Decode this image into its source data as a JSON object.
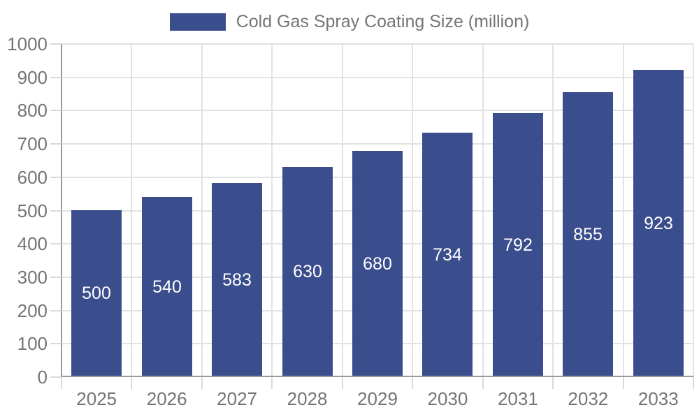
{
  "chart_data": {
    "type": "bar",
    "categories": [
      "2025",
      "2026",
      "2027",
      "2028",
      "2029",
      "2030",
      "2031",
      "2032",
      "2033"
    ],
    "series": [
      {
        "name": "Cold Gas Spray Coating Size (million)",
        "values": [
          500,
          540,
          583,
          630,
          680,
          734,
          792,
          855,
          923
        ]
      }
    ],
    "value_labels": [
      "500",
      "540",
      "583",
      "630",
      "680",
      "734",
      "792",
      "855",
      "923"
    ],
    "title": "",
    "xlabel": "",
    "ylabel": "",
    "ylim": [
      0,
      1000
    ],
    "yticks": [
      0,
      100,
      200,
      300,
      400,
      500,
      600,
      700,
      800,
      900,
      1000
    ],
    "grid": true,
    "legend_position": "top-center",
    "colors": {
      "bar": "#3a4d8c",
      "grid": "#e2e2e2",
      "axis": "#999999",
      "tick": "#d9d9d9",
      "text": "#757575",
      "bar_label": "#ffffff"
    }
  }
}
